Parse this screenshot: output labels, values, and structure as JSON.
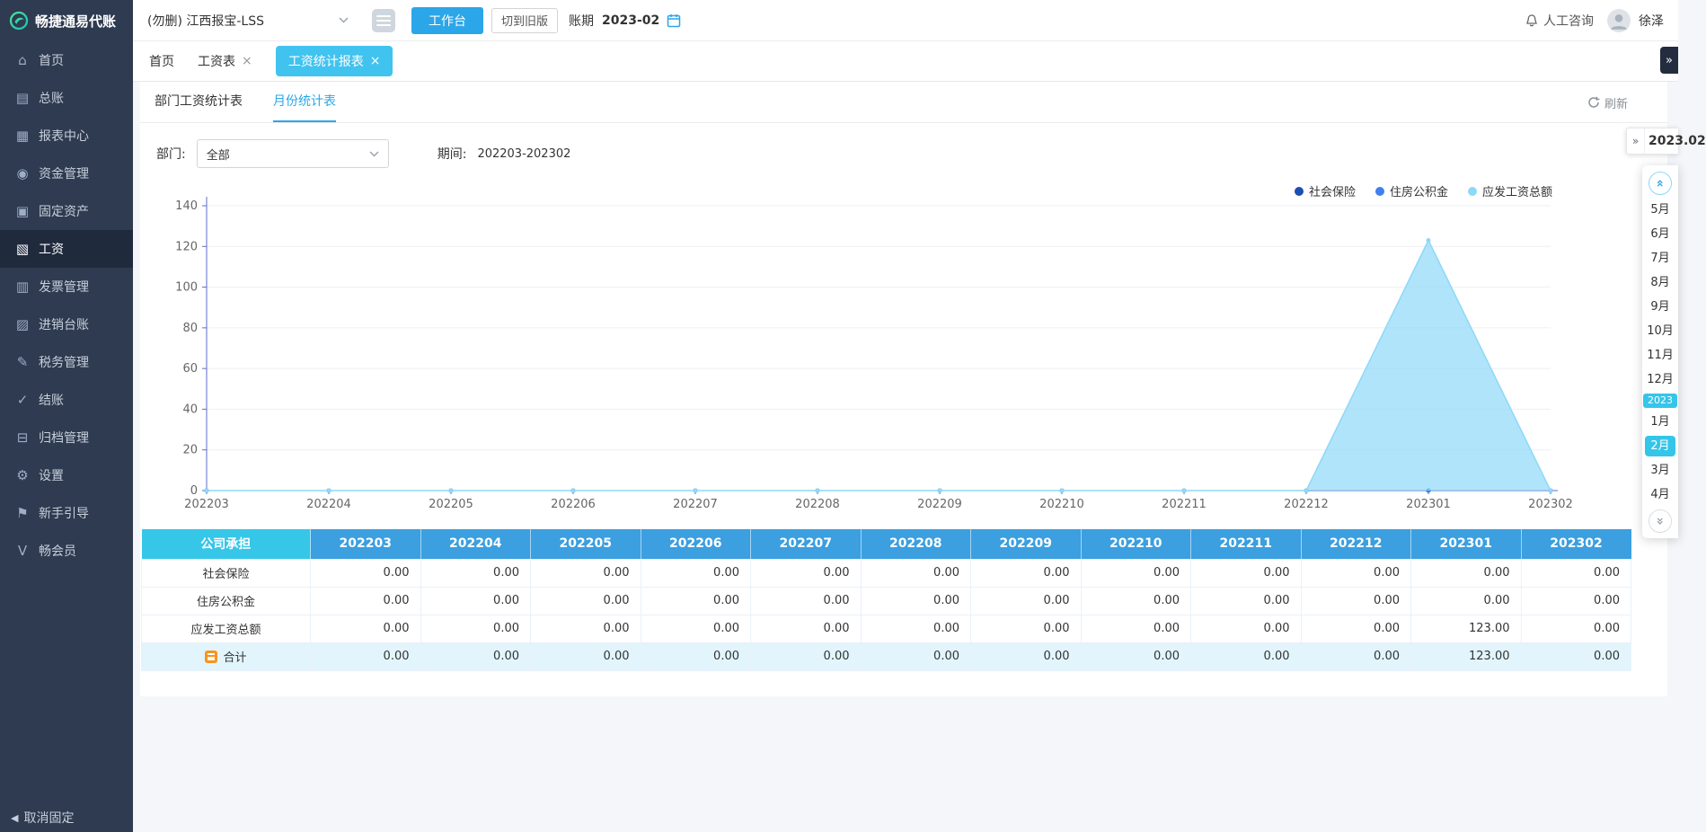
{
  "app": {
    "brand": "畅捷通易代账",
    "unpin_label": "取消固定",
    "unpin_glyph": "◀",
    "collapse_glyph": "»"
  },
  "colors": {
    "accent": "#2ba6e8",
    "active_tab": "#41c3ef",
    "table_header_first": "#36c6e8",
    "table_header": "#3b9fe0",
    "total_row_bg": "#e2f5fd",
    "sidebar_bg": "#2e3b50",
    "axis": "#5d6bc9",
    "grid": "#edeff5"
  },
  "sidebar": {
    "items": [
      {
        "id": "home",
        "label": "首页",
        "icon": "home-icon",
        "glyph": "⌂",
        "active": false
      },
      {
        "id": "general-ledger",
        "label": "总账",
        "icon": "general-ledger-icon",
        "glyph": "▤",
        "active": false
      },
      {
        "id": "report-center",
        "label": "报表中心",
        "icon": "report-center-icon",
        "glyph": "▦",
        "active": false
      },
      {
        "id": "funds",
        "label": "资金管理",
        "icon": "funds-icon",
        "glyph": "◉",
        "active": false
      },
      {
        "id": "fixed-assets",
        "label": "固定资产",
        "icon": "fixed-assets-icon",
        "glyph": "▣",
        "active": false
      },
      {
        "id": "salary",
        "label": "工资",
        "icon": "salary-icon",
        "glyph": "▧",
        "active": true
      },
      {
        "id": "invoice",
        "label": "发票管理",
        "icon": "invoice-icon",
        "glyph": "▥",
        "active": false
      },
      {
        "id": "inventory-ledger",
        "label": "进销台账",
        "icon": "inventory-ledger-icon",
        "glyph": "▨",
        "active": false
      },
      {
        "id": "tax",
        "label": "税务管理",
        "icon": "tax-icon",
        "glyph": "✎",
        "active": false
      },
      {
        "id": "closing",
        "label": "结账",
        "icon": "closing-icon",
        "glyph": "✓",
        "active": false
      },
      {
        "id": "archive",
        "label": "归档管理",
        "icon": "archive-icon",
        "glyph": "⊟",
        "active": false
      },
      {
        "id": "settings",
        "label": "设置",
        "icon": "settings-icon",
        "glyph": "⚙",
        "active": false
      },
      {
        "id": "guide",
        "label": "新手引导",
        "icon": "guide-icon",
        "glyph": "⚑",
        "active": false
      },
      {
        "id": "member",
        "label": "畅会员",
        "icon": "member-icon",
        "glyph": "Ⅴ",
        "active": false
      }
    ]
  },
  "header": {
    "company": "(勿删) 江西报宝-LSS",
    "workbench_button": "工作台",
    "old_version_button": "切到旧版",
    "period_label": "账期",
    "period_value": "2023-02",
    "consult_label": "人工咨询",
    "username": "徐泽"
  },
  "tabs": [
    {
      "id": "home",
      "label": "首页",
      "closable": false,
      "active": false
    },
    {
      "id": "salary-sheet",
      "label": "工资表",
      "closable": true,
      "active": false
    },
    {
      "id": "salary-report",
      "label": "工资统计报表",
      "closable": true,
      "active": true
    }
  ],
  "page": {
    "subtabs": [
      {
        "id": "department",
        "label": "部门工资统计表",
        "active": false
      },
      {
        "id": "monthly",
        "label": "月份统计表",
        "active": true
      }
    ],
    "refresh_label": "刷新",
    "filters": {
      "department_label": "部门:",
      "department_value": "全部",
      "period_label": "期间:",
      "period_value": "202203-202302"
    }
  },
  "chart_data": {
    "type": "area",
    "x": [
      "202203",
      "202204",
      "202205",
      "202206",
      "202207",
      "202208",
      "202209",
      "202210",
      "202211",
      "202212",
      "202301",
      "202302"
    ],
    "series": [
      {
        "name": "社会保险",
        "color": "#1b4fb0",
        "values": [
          0,
          0,
          0,
          0,
          0,
          0,
          0,
          0,
          0,
          0,
          0,
          0
        ]
      },
      {
        "name": "住房公积金",
        "color": "#3f7ff0",
        "values": [
          0,
          0,
          0,
          0,
          0,
          0,
          0,
          0,
          0,
          0,
          0,
          0
        ]
      },
      {
        "name": "应发工资总额",
        "color": "#8ed8f8",
        "values": [
          0,
          0,
          0,
          0,
          0,
          0,
          0,
          0,
          0,
          0,
          123,
          0
        ]
      }
    ],
    "ylim": [
      0,
      140
    ],
    "yticks": [
      0,
      20,
      40,
      60,
      80,
      100,
      120,
      140
    ],
    "legend_position": "top-right",
    "grid": true
  },
  "table": {
    "corner_header": "公司承担",
    "columns": [
      "202203",
      "202204",
      "202205",
      "202206",
      "202207",
      "202208",
      "202209",
      "202210",
      "202211",
      "202212",
      "202301",
      "202302"
    ],
    "rows": [
      {
        "label": "社会保险",
        "values": [
          "0.00",
          "0.00",
          "0.00",
          "0.00",
          "0.00",
          "0.00",
          "0.00",
          "0.00",
          "0.00",
          "0.00",
          "0.00",
          "0.00"
        ]
      },
      {
        "label": "住房公积金",
        "values": [
          "0.00",
          "0.00",
          "0.00",
          "0.00",
          "0.00",
          "0.00",
          "0.00",
          "0.00",
          "0.00",
          "0.00",
          "0.00",
          "0.00"
        ]
      },
      {
        "label": "应发工资总额",
        "values": [
          "0.00",
          "0.00",
          "0.00",
          "0.00",
          "0.00",
          "0.00",
          "0.00",
          "0.00",
          "0.00",
          "0.00",
          "123.00",
          "0.00"
        ]
      },
      {
        "label": "合计",
        "icon": "calculator-icon",
        "highlight": true,
        "values": [
          "0.00",
          "0.00",
          "0.00",
          "0.00",
          "0.00",
          "0.00",
          "0.00",
          "0.00",
          "0.00",
          "0.00",
          "123.00",
          "0.00"
        ]
      }
    ]
  },
  "period_panel": {
    "current": "2023.02",
    "collapse_glyph": "»",
    "scroll_up_glyph": "«",
    "scroll_down_glyph": "»",
    "months": [
      {
        "label": "5月"
      },
      {
        "label": "6月"
      },
      {
        "label": "7月"
      },
      {
        "label": "8月"
      },
      {
        "label": "9月"
      },
      {
        "label": "10月"
      },
      {
        "label": "11月"
      },
      {
        "label": "12月"
      },
      {
        "label": "2023",
        "badge": true
      },
      {
        "label": "1月"
      },
      {
        "label": "2月",
        "active": true
      },
      {
        "label": "3月"
      },
      {
        "label": "4月"
      }
    ]
  }
}
